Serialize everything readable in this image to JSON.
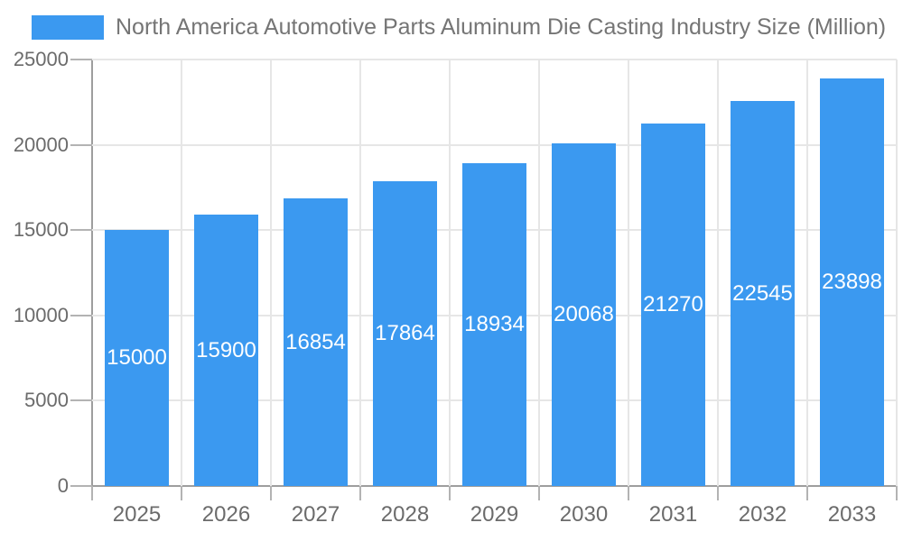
{
  "legend": {
    "swatch_color": "#3b99f0"
  },
  "chart_data": {
    "type": "bar",
    "title": "North America Automotive Parts Aluminum Die Casting Industry Size (Million)",
    "categories": [
      "2025",
      "2026",
      "2027",
      "2028",
      "2029",
      "2030",
      "2031",
      "2032",
      "2033"
    ],
    "values": [
      15000,
      15900,
      16854,
      17864,
      18934,
      20068,
      21270,
      22545,
      23898
    ],
    "xlabel": "",
    "ylabel": "",
    "ylim": [
      0,
      25000
    ],
    "yticks": [
      0,
      5000,
      10000,
      15000,
      20000,
      25000
    ],
    "grid": true,
    "legend_position": "top-left",
    "bar_color": "#3b99f0",
    "bar_label_color": "#ffffff",
    "axis_color": "#9e9e9e",
    "gridline_color": "#e6e6e6",
    "text_color": "#6b6b6b",
    "legend_text_color": "#757575"
  }
}
